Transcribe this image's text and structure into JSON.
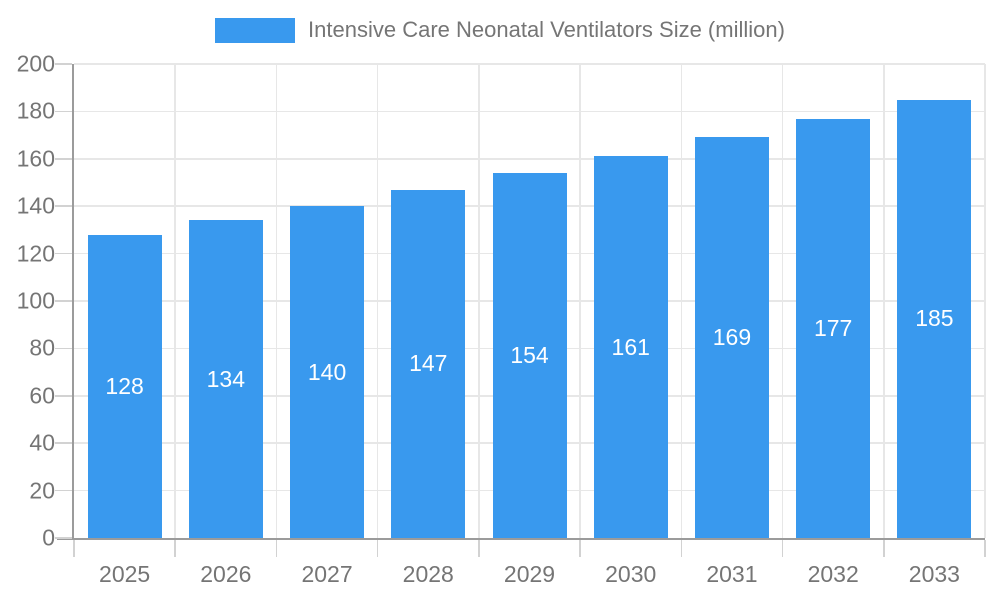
{
  "chart_data": {
    "type": "bar",
    "title": "Intensive Care Neonatal Ventilators Size (million)",
    "legend_position": "top",
    "categories": [
      "2025",
      "2026",
      "2027",
      "2028",
      "2029",
      "2030",
      "2031",
      "2032",
      "2033"
    ],
    "values": [
      128,
      134,
      140,
      147,
      154,
      161,
      169,
      177,
      185
    ],
    "value_labels_position": "inside-center",
    "xlabel": "",
    "ylabel": "",
    "ylim": [
      0,
      200
    ],
    "ytick_step": 20,
    "grid": true,
    "colors": {
      "bar": "#3999EE",
      "axis": "#9B9B9B",
      "grid": "#E7E7E7",
      "tick": "#D2D2D2",
      "label": "#757575",
      "value_label": "#FFFFFF",
      "background": "#FFFFFF"
    }
  }
}
